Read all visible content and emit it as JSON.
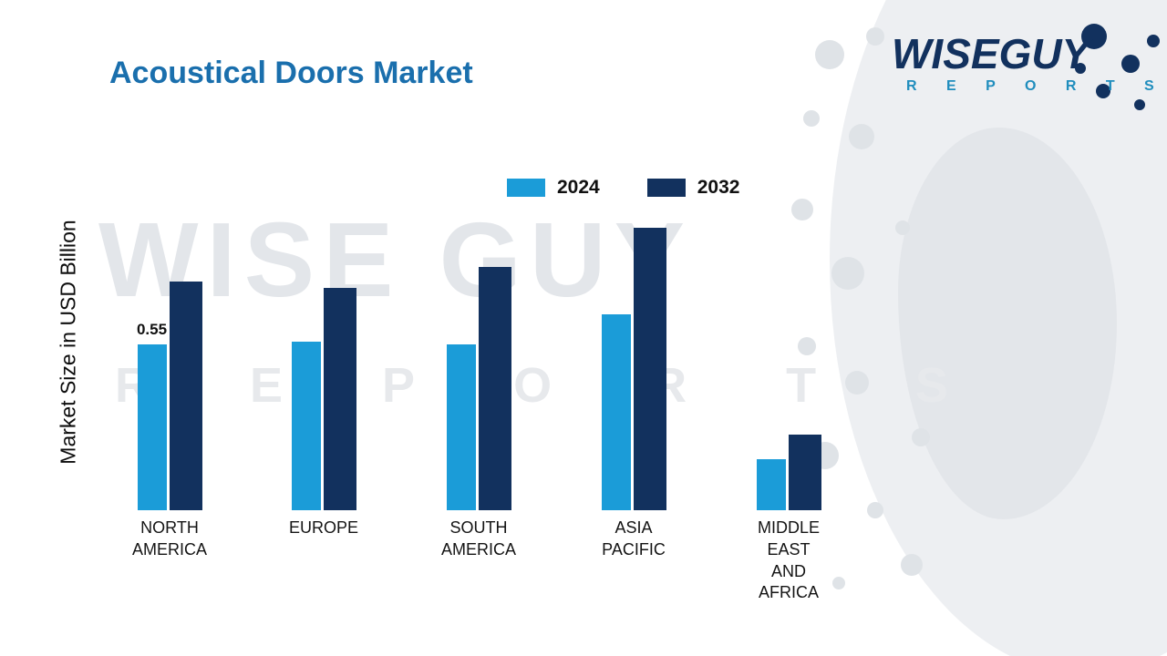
{
  "page": {
    "title": "Acoustical Doors Market"
  },
  "logo": {
    "line1": "WISEGUY",
    "line2": "R E P O R T S"
  },
  "watermark": {
    "line1": "WISE GUY",
    "line2": "R E P O R T S"
  },
  "chart_data": {
    "type": "bar",
    "categories": [
      "NORTH\nAMERICA",
      "EUROPE",
      "SOUTH\nAMERICA",
      "ASIA\nPACIFIC",
      "MIDDLE\nEAST\nAND\nAFRICA"
    ],
    "series": [
      {
        "name": "2024",
        "color": "#1b9cd8",
        "values": [
          0.55,
          0.56,
          0.55,
          0.65,
          0.17
        ]
      },
      {
        "name": "2032",
        "color": "#12315e",
        "values": [
          0.76,
          0.74,
          0.81,
          0.94,
          0.25
        ]
      }
    ],
    "title": "Acoustical Doors Market",
    "xlabel": "",
    "ylabel": "Market Size in USD Billion",
    "ylim": [
      0,
      1.0
    ],
    "grid": false,
    "legend_position": "top",
    "data_labels": [
      {
        "series": "2024",
        "category_index": 0,
        "text": "0.55"
      }
    ]
  },
  "colors": {
    "title": "#1a6fad",
    "series_2024": "#1b9cd8",
    "series_2032": "#12315e",
    "watermark": "#e3e6ea",
    "background_shape": "#edeff2"
  }
}
